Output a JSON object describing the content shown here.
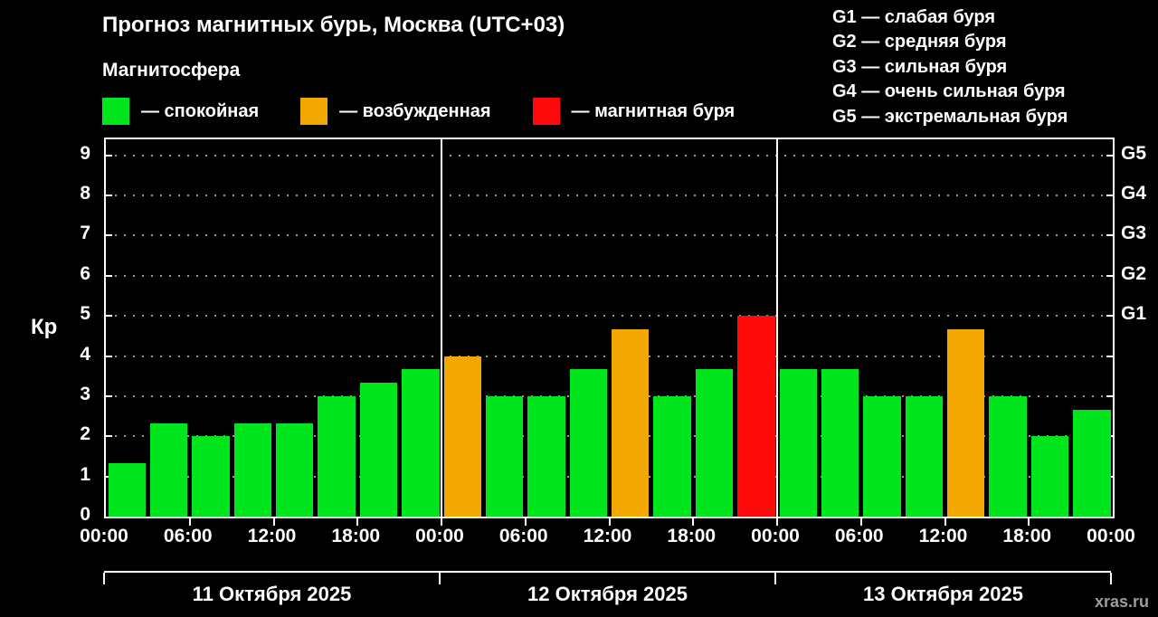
{
  "header": {
    "title": "Прогноз магнитных бурь, Москва (UTC+03)",
    "subtitle": "Магнитосфера"
  },
  "colors": {
    "quiet": "#00e51c",
    "excited": "#f2a800",
    "storm": "#ff0a0a",
    "background": "#000000",
    "axis": "#ffffff"
  },
  "legend": [
    {
      "key": "quiet",
      "label": "— спокойная"
    },
    {
      "key": "excited",
      "label": "— возбужденная"
    },
    {
      "key": "storm",
      "label": "— магнитная буря"
    }
  ],
  "g_scale_legend": [
    "G1 — слабая буря",
    "G2 — средняя буря",
    "G3 — сильная буря",
    "G4 — очень сильная буря",
    "G5 — экстремальная буря"
  ],
  "watermark": "xras.ru",
  "chart_data": {
    "type": "bar",
    "title": "Прогноз магнитных бурь, Москва (UTC+03)",
    "ylabel": "Кр",
    "ylim": [
      0,
      9.4
    ],
    "yticks": [
      0,
      1,
      2,
      3,
      4,
      5,
      6,
      7,
      8,
      9
    ],
    "grid": "dotted horizontal lines at each Kp integer",
    "legend_position": "top",
    "right_axis": [
      {
        "label": "G1",
        "kp": 5
      },
      {
        "label": "G2",
        "kp": 6
      },
      {
        "label": "G3",
        "kp": 7
      },
      {
        "label": "G4",
        "kp": 8
      },
      {
        "label": "G5",
        "kp": 9
      }
    ],
    "x_tick_labels": [
      "00:00",
      "06:00",
      "12:00",
      "18:00",
      "00:00",
      "06:00",
      "12:00",
      "18:00",
      "00:00",
      "06:00",
      "12:00",
      "18:00",
      "00:00"
    ],
    "bar_interval_hours": 3,
    "days": [
      {
        "date": "11 Октября 2025",
        "kp": [
          1.33,
          2.33,
          2.0,
          2.33,
          2.33,
          3.0,
          3.33,
          3.67
        ],
        "status": [
          "quiet",
          "quiet",
          "quiet",
          "quiet",
          "quiet",
          "quiet",
          "quiet",
          "quiet"
        ]
      },
      {
        "date": "12 Октября 2025",
        "kp": [
          4.0,
          3.0,
          3.0,
          3.67,
          4.67,
          3.0,
          3.67,
          5.0
        ],
        "status": [
          "excited",
          "quiet",
          "quiet",
          "quiet",
          "excited",
          "quiet",
          "quiet",
          "storm"
        ]
      },
      {
        "date": "13 Октября 2025",
        "kp": [
          3.67,
          3.67,
          3.0,
          3.0,
          4.67,
          3.0,
          2.0,
          2.67
        ],
        "status": [
          "quiet",
          "quiet",
          "quiet",
          "quiet",
          "excited",
          "quiet",
          "quiet",
          "quiet"
        ]
      }
    ]
  }
}
